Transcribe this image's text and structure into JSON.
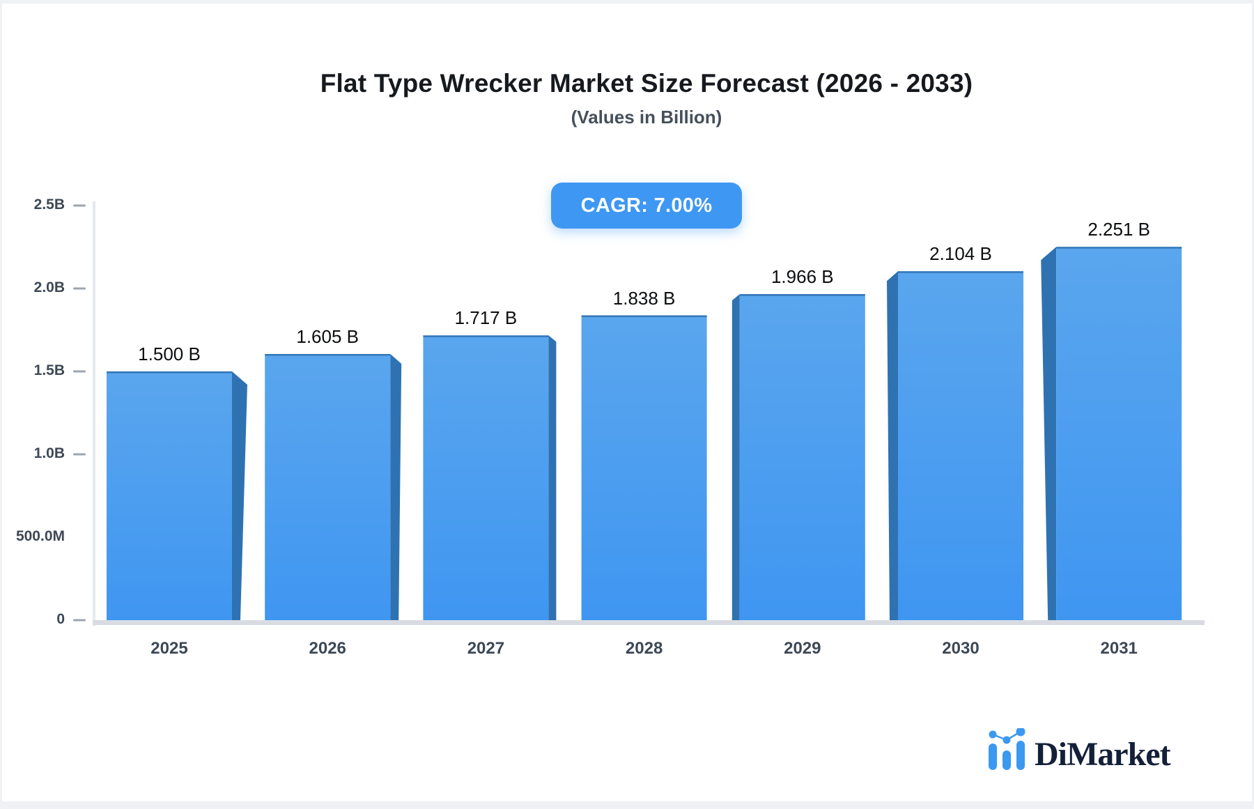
{
  "header": {
    "title": "Flat Type Wrecker Market Size Forecast (2026 - 2033)",
    "subtitle": "(Values in Billion)"
  },
  "badge": {
    "label": "CAGR: 7.00%"
  },
  "chart_data": {
    "type": "bar",
    "title": "Flat Type Wrecker Market Size Forecast (2026 - 2033)",
    "subtitle": "(Values in Billion)",
    "categories": [
      "2025",
      "2026",
      "2027",
      "2028",
      "2029",
      "2030",
      "2031"
    ],
    "values": [
      1.5,
      1.605,
      1.717,
      1.838,
      1.966,
      2.104,
      2.251
    ],
    "value_labels": [
      "1.500 B",
      "1.605 B",
      "1.717 B",
      "1.838 B",
      "1.966 B",
      "2.104 B",
      "2.251 B"
    ],
    "unit": "Billion",
    "ylim": [
      0,
      2.5
    ],
    "y_ticks": [
      {
        "label": "2.5B",
        "value": 2.5,
        "dash": true
      },
      {
        "label": "2.0B",
        "value": 2.0,
        "dash": true
      },
      {
        "label": "1.5B",
        "value": 1.5,
        "dash": true
      },
      {
        "label": "1.0B",
        "value": 1.0,
        "dash": true
      },
      {
        "label": "500.0M",
        "value": 0.5,
        "dash": false
      },
      {
        "label": "0",
        "value": 0,
        "dash": true
      }
    ],
    "grid": false,
    "legend": null,
    "bar_style": "3d-extruded, perspective vanishing toward center"
  },
  "colors": {
    "badge_bg": "#3e97f3",
    "bar_face_top": "#5aa6ee",
    "bar_face_bottom": "#3f96f1",
    "bar_side": "#2f72b2",
    "bar_top_edge": "#2d6fae",
    "axis_line": "#e5e8ec",
    "baseline": "#d8dce2",
    "tick_dash": "#9da4ac",
    "axis_text": "#3d4856",
    "logo_blue": "#3b99f0",
    "logo_navy": "#132038"
  },
  "branding": {
    "name": "DiMarket"
  }
}
